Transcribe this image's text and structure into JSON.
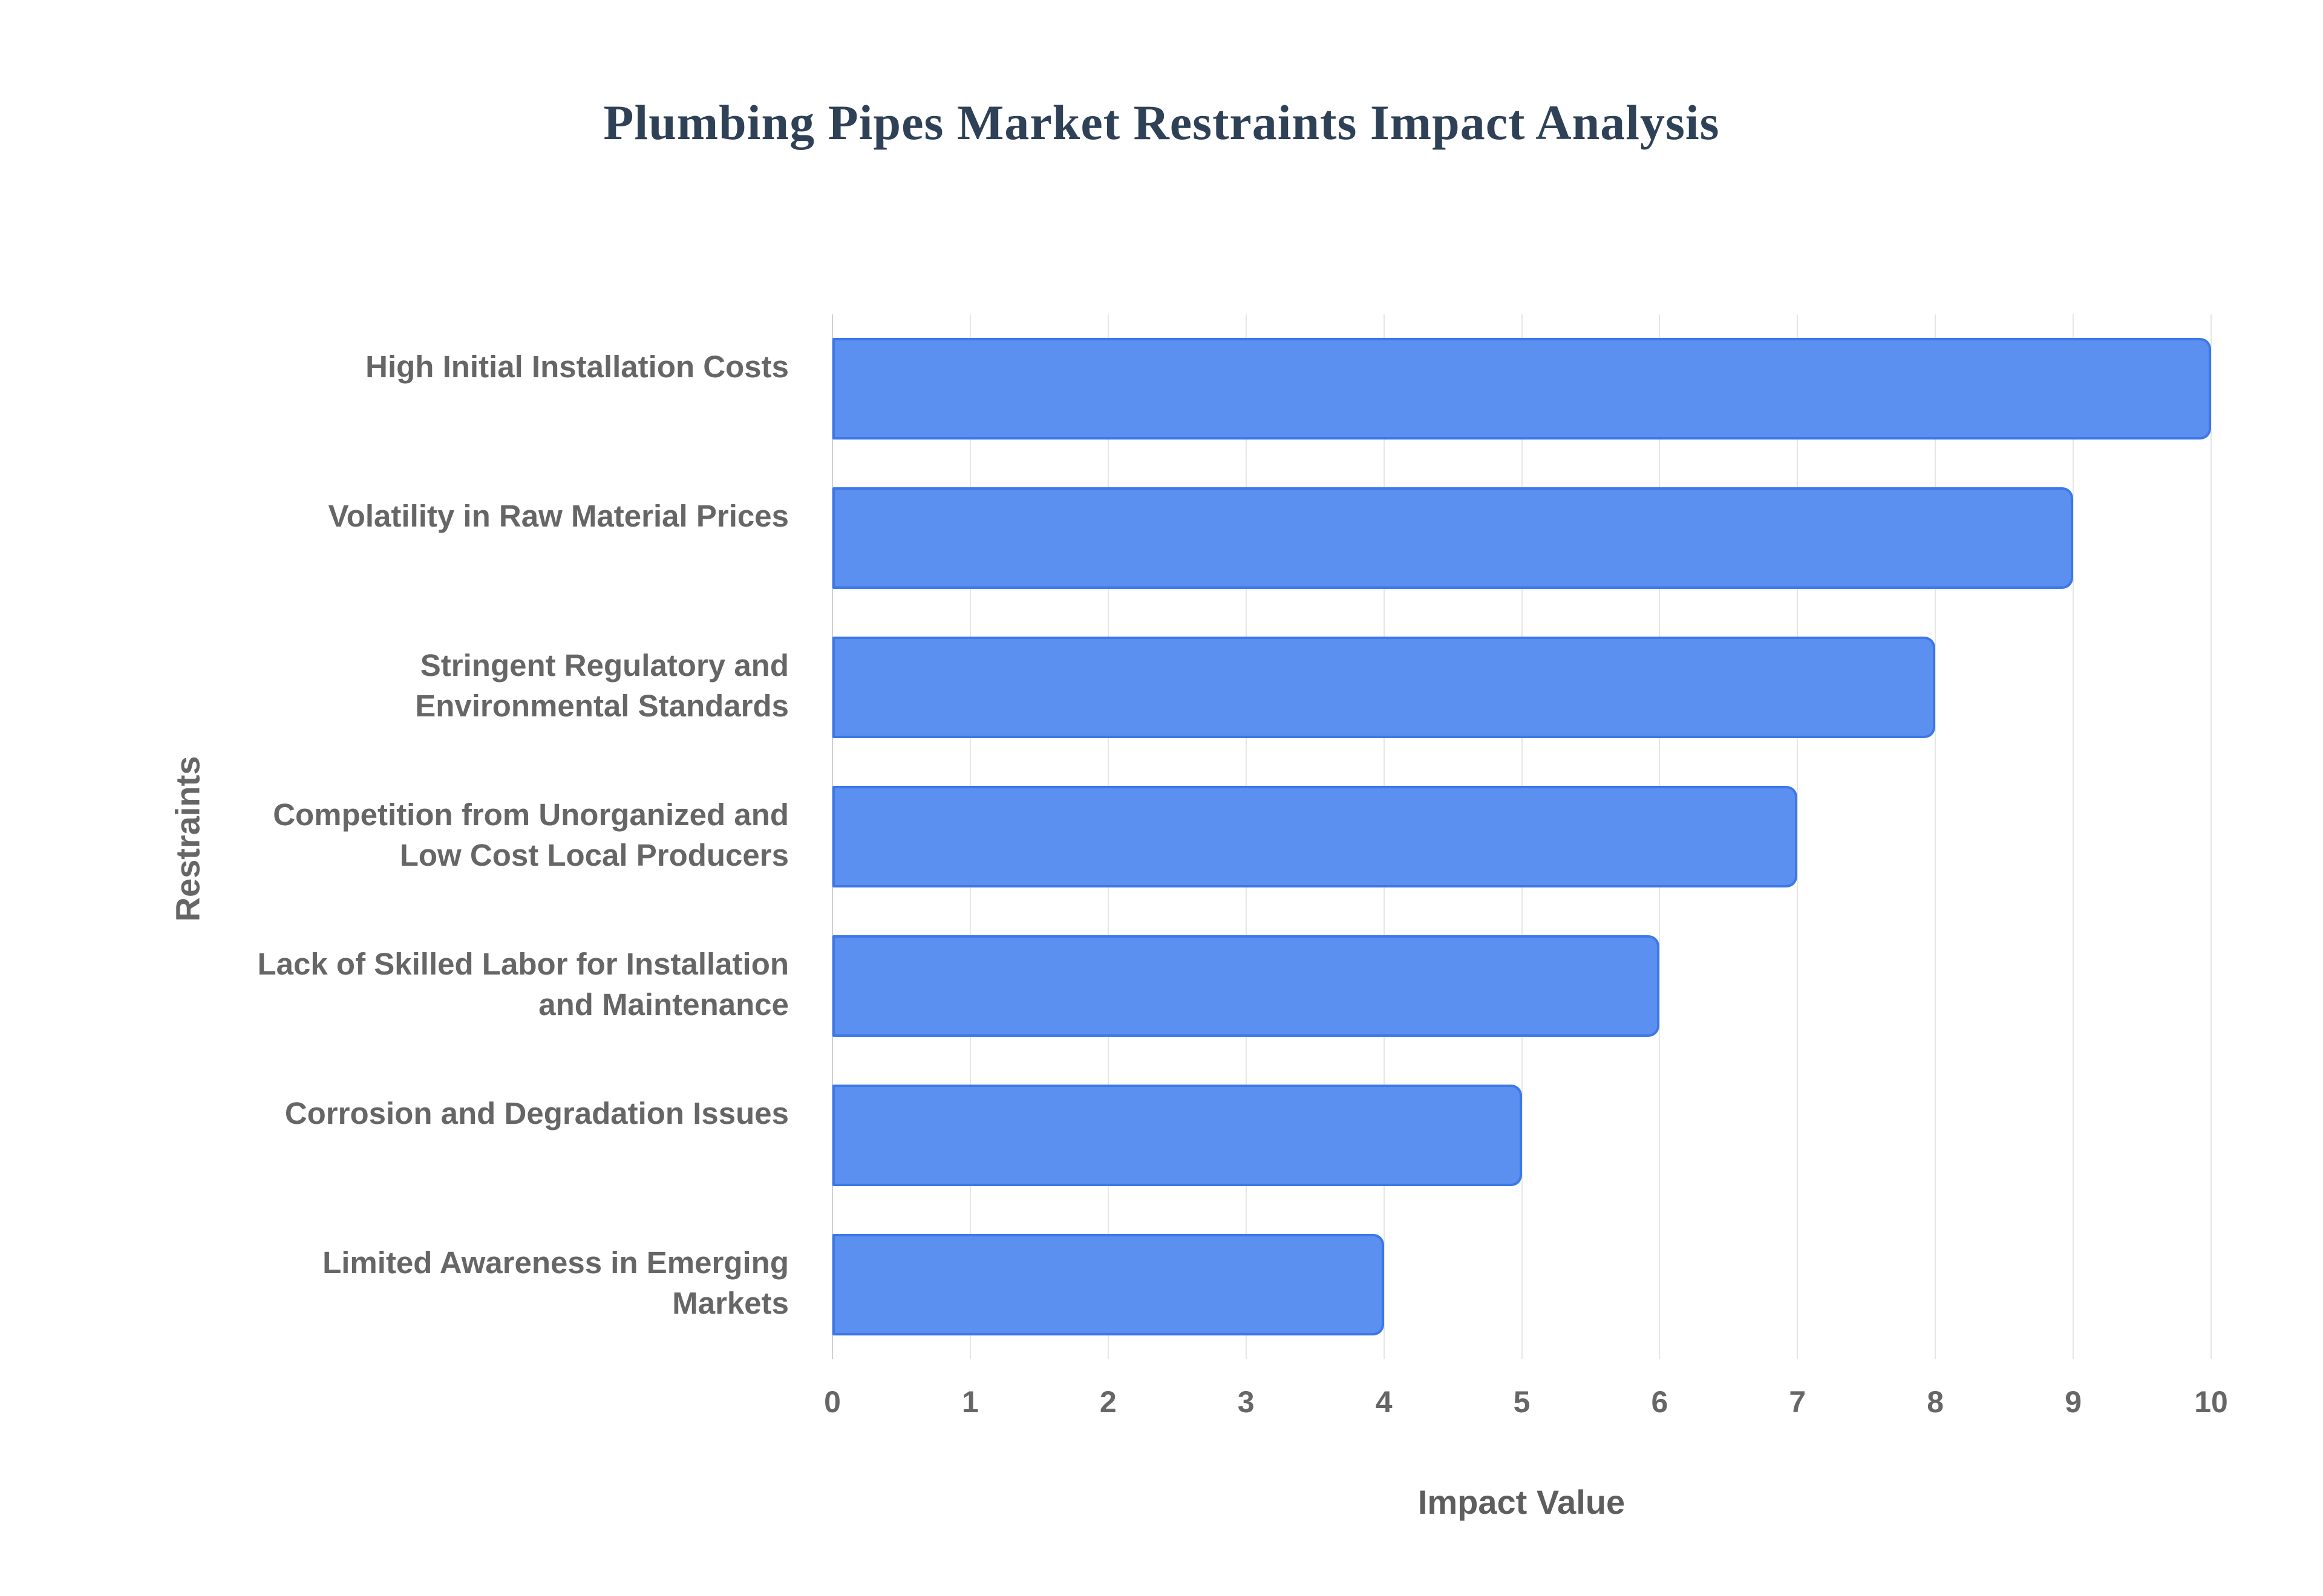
{
  "chart_data": {
    "type": "bar",
    "orientation": "horizontal",
    "title": "Plumbing Pipes Market Restraints Impact Analysis",
    "xlabel": "Impact Value",
    "ylabel": "Restraints",
    "categories": [
      "High Initial Installation Costs",
      "Volatility in Raw Material Prices",
      "Stringent Regulatory and Environmental Standards",
      "Competition from Unorganized and Low Cost Local Producers",
      "Lack of Skilled Labor for Installation and Maintenance",
      "Corrosion and Degradation Issues",
      "Limited Awareness in Emerging Markets"
    ],
    "values": [
      10,
      9,
      8,
      7,
      6,
      5,
      4
    ],
    "xlim": [
      0,
      10
    ],
    "xticks": [
      0,
      1,
      2,
      3,
      4,
      5,
      6,
      7,
      8,
      9,
      10
    ],
    "grid": "vertical-only",
    "legend": "none",
    "colors": {
      "bar_fill": "#5b8ff0",
      "bar_border": "#3c78e7",
      "title_text": "#2e4156",
      "label_text": "#666666",
      "tick_text": "#666666",
      "axis_title_text": "#5e5e5e",
      "grid_line": "#e6e6e6",
      "zero_axis_line": "#cfcfcf",
      "background": "#ffffff"
    }
  }
}
